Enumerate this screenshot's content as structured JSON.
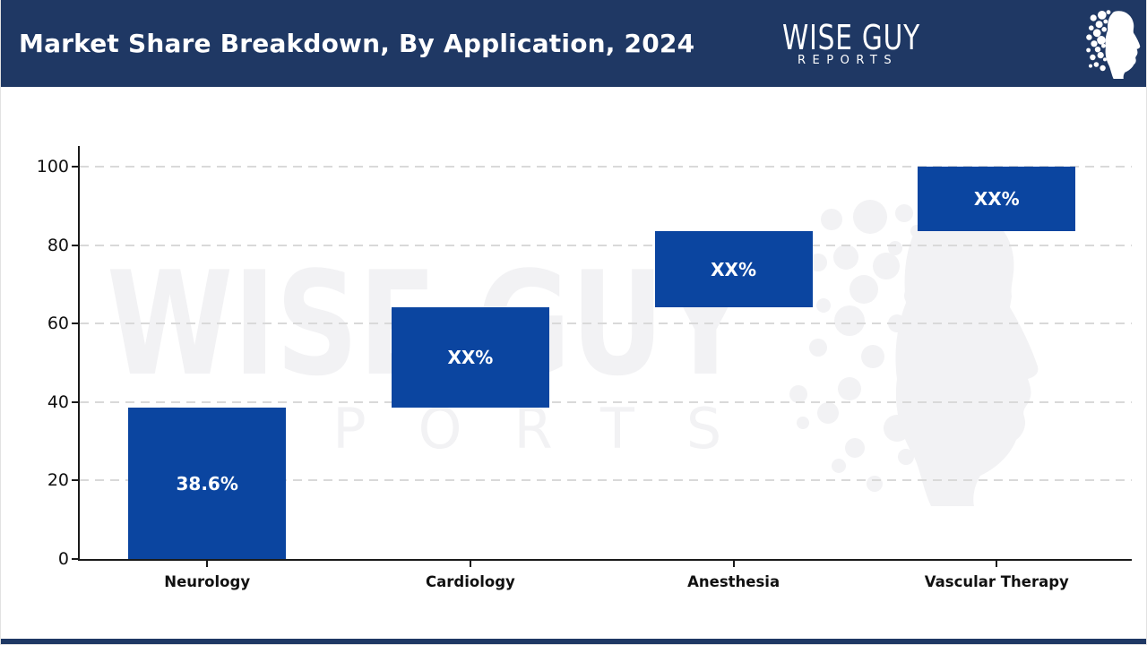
{
  "header": {
    "title": "Market Share Breakdown, By Application, 2024",
    "logo": {
      "wordmark": "WISE GUY",
      "sub": "REPORTS"
    }
  },
  "watermark": {
    "wordmark": "WISE GUY",
    "sub": "REPORTS"
  },
  "colors": {
    "header_bg": "#1f3864",
    "footer_bg": "#1f3864",
    "bar": "#0b45a0",
    "bar_label": "#ffffff",
    "grid": "#d9d9d9",
    "axis": "#1a1a1a",
    "watermark": "#f2f2f4"
  },
  "chart_data": {
    "type": "bar",
    "subtype": "waterfall",
    "title": "Market Share Breakdown, By Application, 2024",
    "categories": [
      "Neurology",
      "Cardiology",
      "Anesthesia",
      "Vascular Therapy"
    ],
    "series": [
      {
        "name": "Market share (%)",
        "segments": [
          {
            "category": "Neurology",
            "start": 0,
            "end": 38.6,
            "label": "38.6%"
          },
          {
            "category": "Cardiology",
            "start": 38.6,
            "end": 64.2,
            "label": "XX%"
          },
          {
            "category": "Anesthesia",
            "start": 64.2,
            "end": 83.6,
            "label": "XX%"
          },
          {
            "category": "Vascular Therapy",
            "start": 83.6,
            "end": 100,
            "label": "XX%"
          }
        ]
      }
    ],
    "ylim": [
      0,
      100
    ],
    "yticks": [
      0,
      20,
      40,
      60,
      80,
      100
    ],
    "xlabel": "",
    "ylabel": "",
    "grid": "horizontal-dashed",
    "legend": "none"
  }
}
